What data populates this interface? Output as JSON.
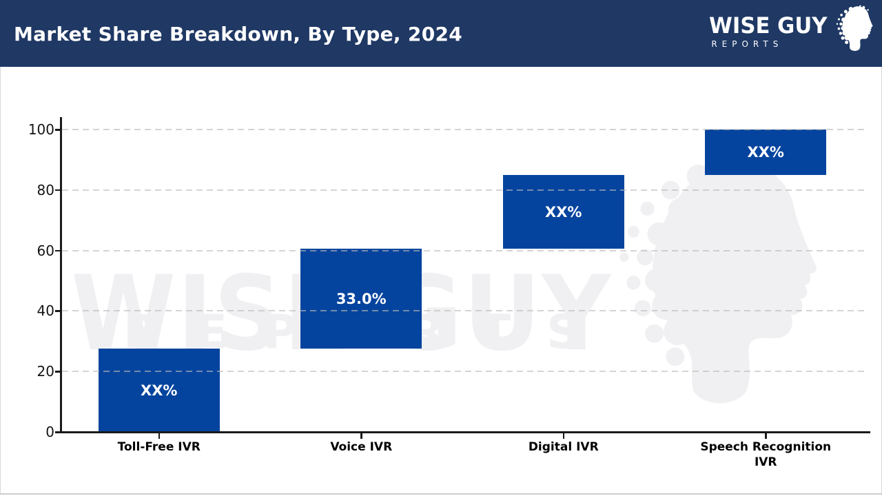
{
  "header": {
    "title": "Market Share Breakdown, By Type, 2024",
    "logo": {
      "wordmark": "WISE GUY",
      "subtext": "REPORTS"
    }
  },
  "watermark": {
    "wordmark": "WISE GUY",
    "subtext": "REPORTS"
  },
  "chart_data": {
    "type": "bar",
    "subtype": "stacked-waterfall-segments",
    "title": "Market Share Breakdown, By Type, 2024",
    "xlabel": "",
    "ylabel": "",
    "ylim": [
      0,
      104
    ],
    "yticks": [
      0,
      20,
      40,
      60,
      80,
      100
    ],
    "grid": "horizontal-dashed",
    "legend": "none",
    "bar_color": "#05449e",
    "value_label_color": "#ffffff",
    "categories": [
      "Toll-Free IVR",
      "Voice IVR",
      "Digital IVR",
      "Speech Recognition IVR"
    ],
    "bars": [
      {
        "category": "Toll-Free IVR",
        "start": 0,
        "end": 27.5,
        "value_label": "XX%"
      },
      {
        "category": "Voice IVR",
        "start": 27.5,
        "end": 60.5,
        "value_label": "33.0%",
        "value": 33.0
      },
      {
        "category": "Digital IVR",
        "start": 60.5,
        "end": 85,
        "value_label": "XX%"
      },
      {
        "category": "Speech Recognition IVR",
        "start": 85,
        "end": 100,
        "value_label": "XX%"
      }
    ]
  }
}
